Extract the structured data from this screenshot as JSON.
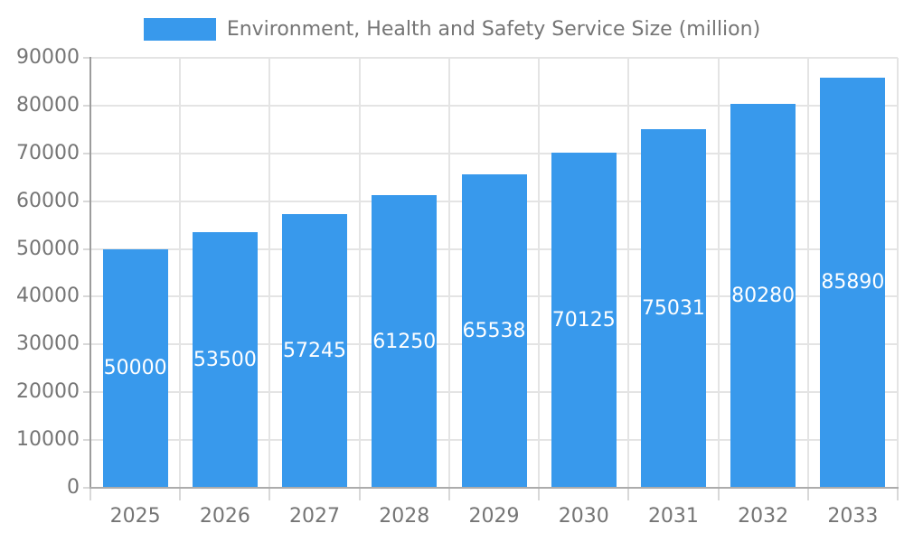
{
  "legend": {
    "label": "Environment, Health and Safety Service Size (million)"
  },
  "chart_data": {
    "type": "bar",
    "title": "Environment, Health and Safety Service Size (million)",
    "categories": [
      "2025",
      "2026",
      "2027",
      "2028",
      "2029",
      "2030",
      "2031",
      "2032",
      "2033"
    ],
    "values": [
      50000,
      53500,
      57245,
      61250,
      65538,
      70125,
      75031,
      80280,
      85890
    ],
    "xlabel": "",
    "ylabel": "",
    "ylim": [
      0,
      90000
    ],
    "ytick_step": 10000,
    "yticks": [
      0,
      10000,
      20000,
      30000,
      40000,
      50000,
      60000,
      70000,
      80000,
      90000
    ],
    "grid": true,
    "legend_position": "top",
    "value_labels": "inside-center",
    "colors": {
      "bar": "#3899EC",
      "value_label": "#FFFFFF",
      "axis_text": "#757575",
      "gridline": "#E4E4E4",
      "tick": "#D8D8D8",
      "y_axis_line": "#9C9C9C",
      "x_axis_line": "#ACACAC"
    }
  }
}
